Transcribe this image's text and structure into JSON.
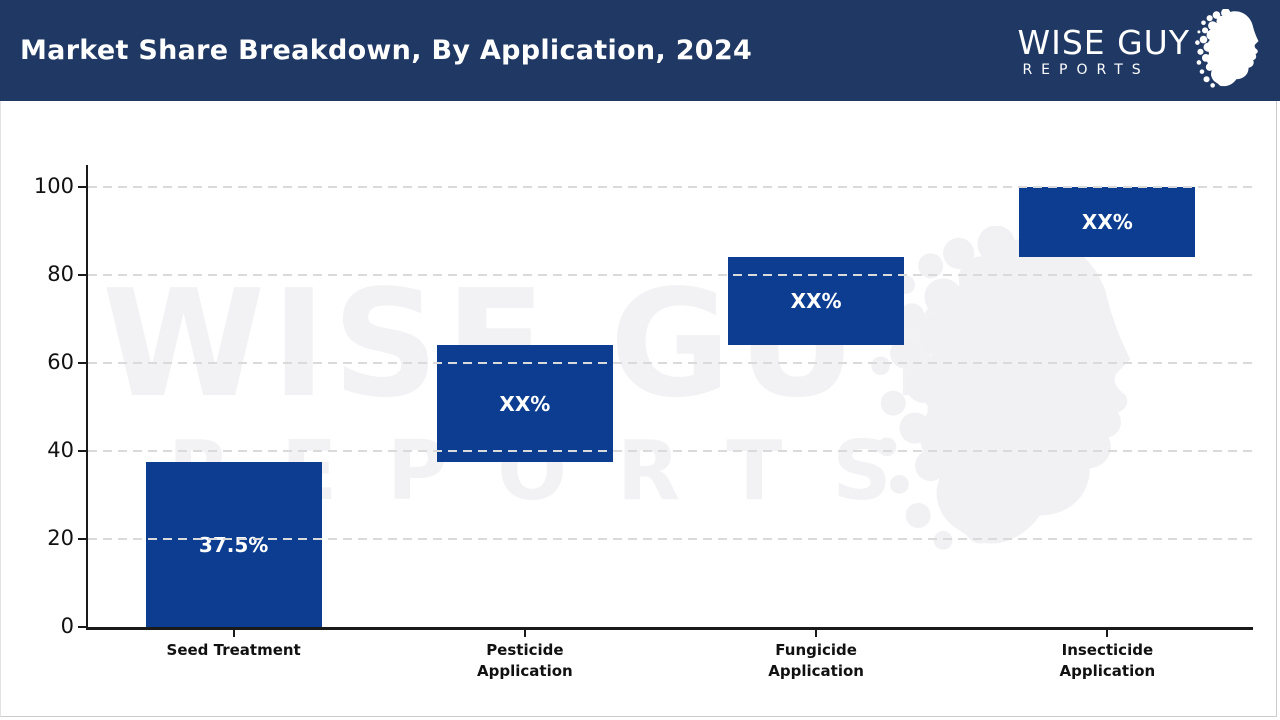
{
  "header": {
    "title": "Market Share Breakdown, By Application, 2024",
    "bg_color": "#1F3864",
    "logo": {
      "line1": "WISE GUY",
      "line2": "REPORTS"
    }
  },
  "watermark": {
    "line1": "WISE GUY",
    "line2": "REPORTS"
  },
  "chart_data": {
    "type": "bar",
    "variant": "floating-waterfall",
    "title": "Market Share Breakdown, By Application, 2024",
    "categories": [
      "Seed Treatment",
      "Pesticide\nApplication",
      "Fungicide\nApplication",
      "Insecticide\nApplication"
    ],
    "series": [
      {
        "name": "Market Share %",
        "segments": [
          {
            "category": "Seed Treatment",
            "start": 0,
            "end": 37.5,
            "label": "37.5%"
          },
          {
            "category": "Pesticide Application",
            "start": 37.5,
            "end": 64,
            "label": "XX%"
          },
          {
            "category": "Fungicide Application",
            "start": 64,
            "end": 84,
            "label": "XX%"
          },
          {
            "category": "Insecticide Application",
            "start": 84,
            "end": 100,
            "label": "XX%"
          }
        ]
      }
    ],
    "xlabel": "",
    "ylabel": "",
    "ylim": [
      0,
      100
    ],
    "yticks": [
      0,
      20,
      40,
      60,
      80,
      100
    ],
    "grid": "horizontal-dashed, drawn above bars",
    "legend": "none",
    "bar_color": "#0C3D90",
    "bar_label_color": "#FFFFFF",
    "grid_color": "#DADADA",
    "axis_color": "#1A1A1A",
    "tick_label_color": "#111111"
  }
}
